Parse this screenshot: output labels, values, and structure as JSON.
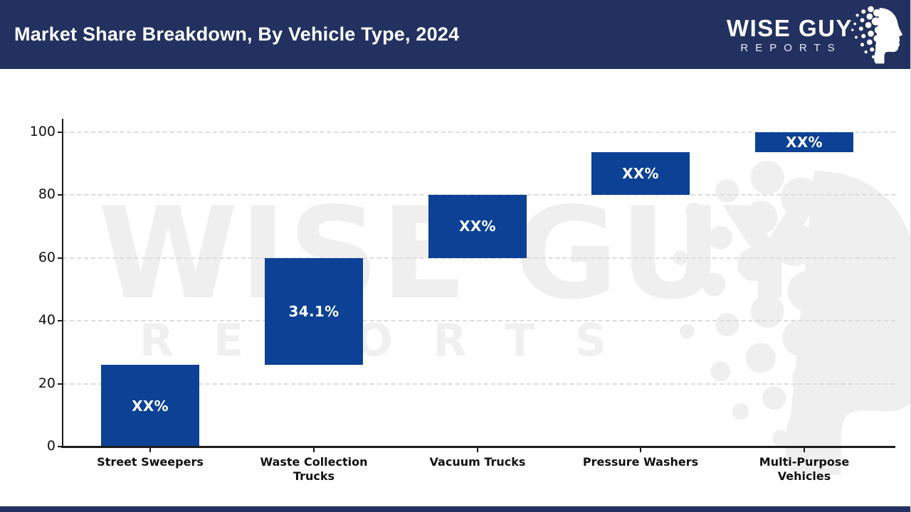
{
  "header": {
    "title": "Market Share Breakdown, By Vehicle Type, 2024",
    "logo": {
      "line1": "WISE GUY",
      "line2": "REPORTS"
    }
  },
  "watermark": {
    "line1": "WISE GUY",
    "line2": "REPORTS"
  },
  "colors": {
    "header_bg": "#223160",
    "bar_blue": "#0c4195",
    "grid_gray": "#dcdcdc",
    "axis_black": "#1c1c1c",
    "watermark_gray": "#efefef"
  },
  "chart_data": {
    "type": "bar",
    "subtype": "waterfall",
    "title": "Market Share Breakdown, By Vehicle Type, 2024",
    "xlabel": "",
    "ylabel": "",
    "ylim": [
      0,
      104
    ],
    "yticks": [
      0,
      20,
      40,
      60,
      80,
      100
    ],
    "grid": "horizontal-dashed",
    "legend": "none",
    "categories": [
      "Street Sweepers",
      "Waste Collection Trucks",
      "Vacuum Trucks",
      "Pressure Washers",
      "Multi-Purpose Vehicles"
    ],
    "bars": [
      {
        "category": "Street Sweepers",
        "label": "XX%",
        "start": 0,
        "end": 25.9
      },
      {
        "category": "Waste Collection Trucks",
        "label": "34.1%",
        "start": 25.9,
        "end": 60.0
      },
      {
        "category": "Vacuum Trucks",
        "label": "XX%",
        "start": 60.0,
        "end": 80.0
      },
      {
        "category": "Pressure Washers",
        "label": "XX%",
        "start": 80.0,
        "end": 93.5
      },
      {
        "category": "Multi-Purpose Vehicles",
        "label": "XX%",
        "start": 93.5,
        "end": 100.0
      }
    ]
  }
}
